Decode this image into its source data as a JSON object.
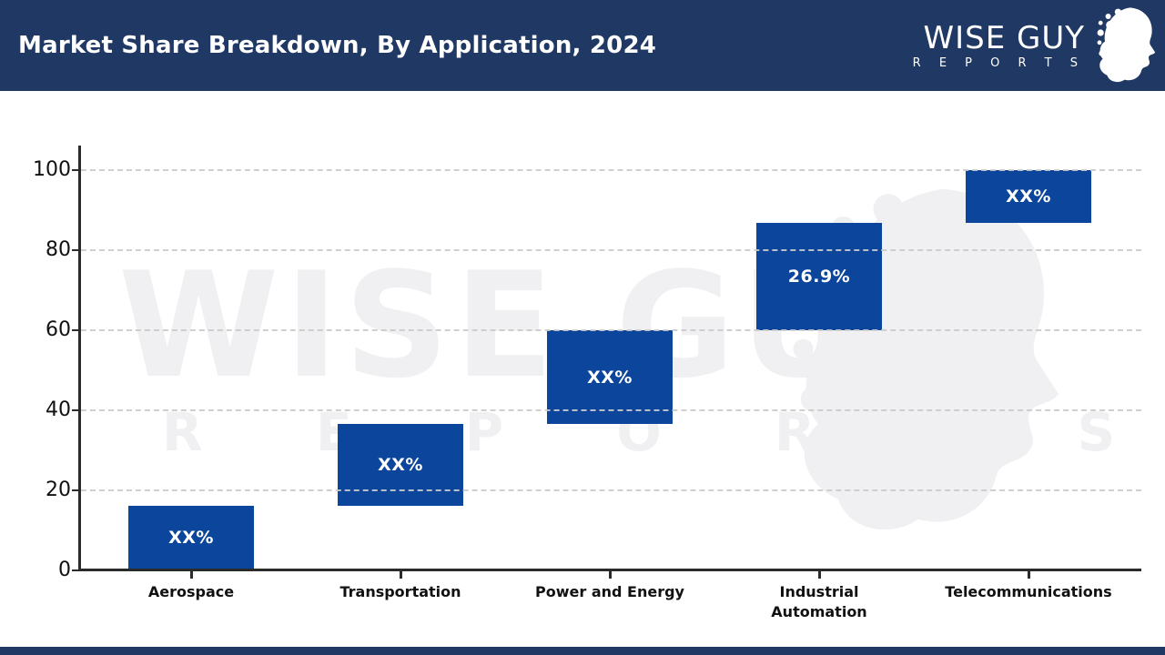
{
  "header": {
    "title": "Market Share Breakdown, By Application, 2024",
    "logo": {
      "name": "WISE GUY",
      "sub": "R E P O R T S"
    }
  },
  "watermark": {
    "line1": "WISE GUY",
    "line2": "R E P O R T S"
  },
  "chart_data": {
    "type": "bar",
    "variant": "waterfall",
    "title": "Market Share Breakdown, By Application, 2024",
    "categories": [
      "Aerospace",
      "Transportation",
      "Power and Energy",
      "Industrial Automation",
      "Telecommunications"
    ],
    "categories_lines": [
      [
        "Aerospace"
      ],
      [
        "Transportation"
      ],
      [
        "Power and Energy"
      ],
      [
        "Industrial",
        "Automation"
      ],
      [
        "Telecommunications"
      ]
    ],
    "segments": [
      {
        "category": "Aerospace",
        "start": 0,
        "end": 16.2,
        "label": "XX%"
      },
      {
        "category": "Transportation",
        "start": 16.2,
        "end": 36.5,
        "label": "XX%"
      },
      {
        "category": "Power and Energy",
        "start": 36.5,
        "end": 60.0,
        "label": "XX%"
      },
      {
        "category": "Industrial Automation",
        "start": 60.0,
        "end": 86.9,
        "label": "26.9%"
      },
      {
        "category": "Telecommunications",
        "start": 86.9,
        "end": 100.0,
        "label": "XX%"
      }
    ],
    "yticks": [
      0,
      20,
      40,
      60,
      80,
      100
    ],
    "ylim": [
      0,
      105
    ],
    "xlabel": "",
    "ylabel": "",
    "grid": "horizontal-dashed",
    "legend": "none",
    "bar_color": "#0c459c",
    "bar_label_color": "#ffffff"
  },
  "colors": {
    "navy": "#1f3864",
    "bar_blue": "#0c459c",
    "grid": "#cbcbcb",
    "axis": "#2b2b2b",
    "watermark": "#f0f0f2"
  }
}
